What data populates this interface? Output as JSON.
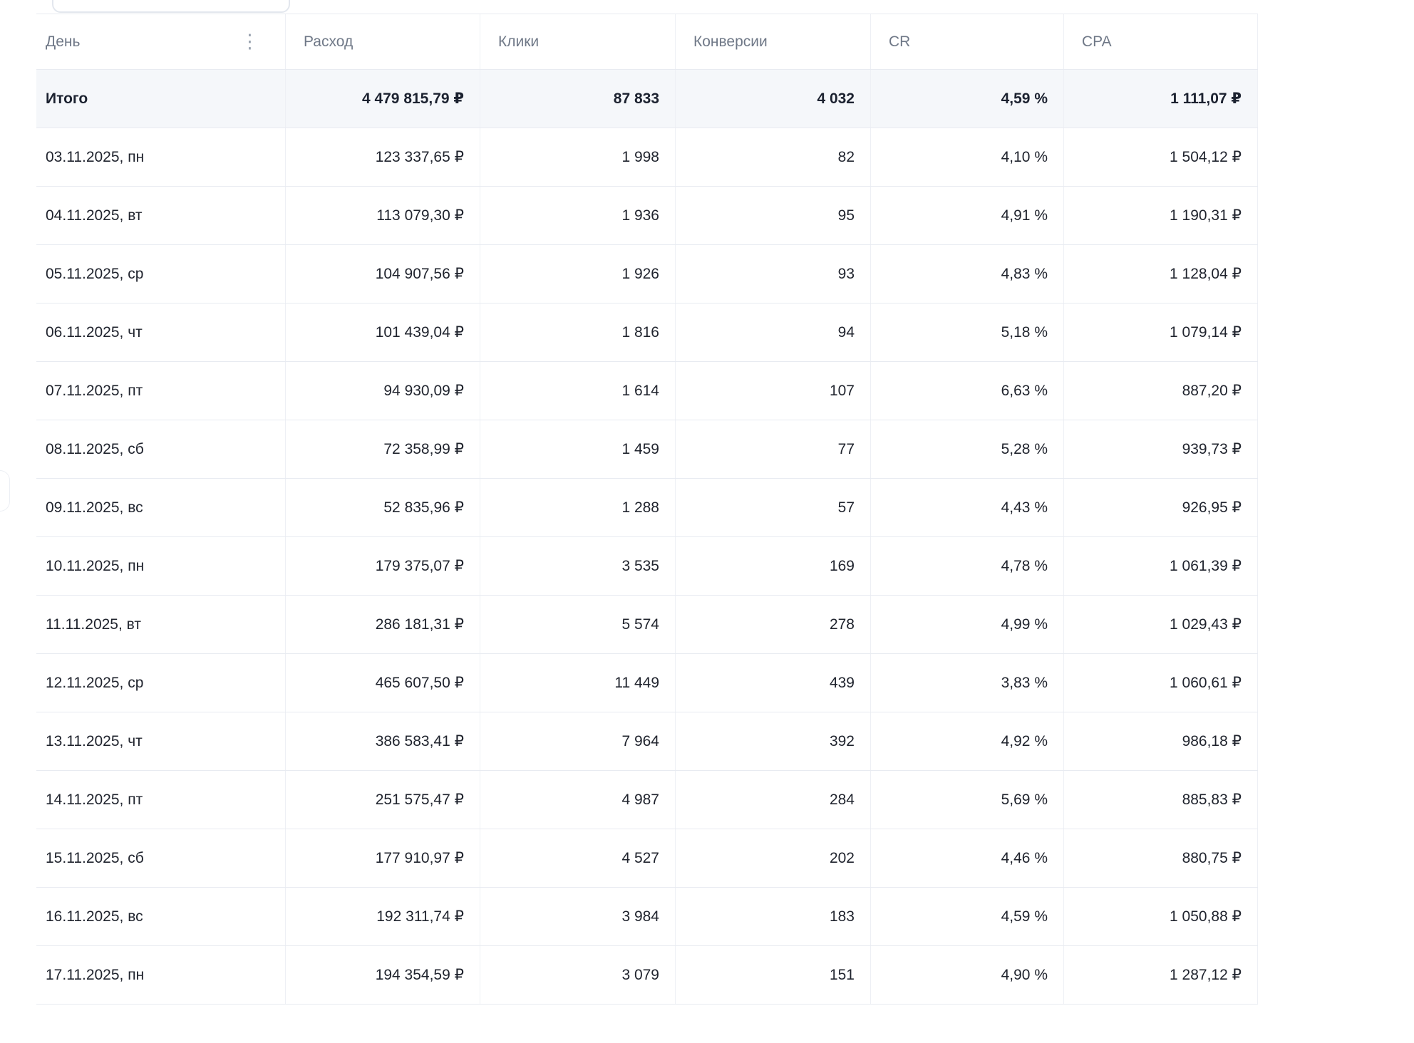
{
  "table": {
    "columns": [
      {
        "key": "day",
        "label": "День"
      },
      {
        "key": "spend",
        "label": "Расход"
      },
      {
        "key": "clicks",
        "label": "Клики"
      },
      {
        "key": "conversions",
        "label": "Конверсии"
      },
      {
        "key": "cr",
        "label": "CR"
      },
      {
        "key": "cpa",
        "label": "CPA"
      }
    ],
    "totals": {
      "day": "Итого",
      "spend": "4 479 815,79 ₽",
      "clicks": "87 833",
      "conversions": "4 032",
      "cr": "4,59 %",
      "cpa": "1 111,07 ₽"
    },
    "rows": [
      {
        "day": "03.11.2025, пн",
        "spend": "123 337,65 ₽",
        "clicks": "1 998",
        "conversions": "82",
        "cr": "4,10 %",
        "cpa": "1 504,12 ₽"
      },
      {
        "day": "04.11.2025, вт",
        "spend": "113 079,30 ₽",
        "clicks": "1 936",
        "conversions": "95",
        "cr": "4,91 %",
        "cpa": "1 190,31 ₽"
      },
      {
        "day": "05.11.2025, ср",
        "spend": "104 907,56 ₽",
        "clicks": "1 926",
        "conversions": "93",
        "cr": "4,83 %",
        "cpa": "1 128,04 ₽"
      },
      {
        "day": "06.11.2025, чт",
        "spend": "101 439,04 ₽",
        "clicks": "1 816",
        "conversions": "94",
        "cr": "5,18 %",
        "cpa": "1 079,14 ₽"
      },
      {
        "day": "07.11.2025, пт",
        "spend": "94 930,09 ₽",
        "clicks": "1 614",
        "conversions": "107",
        "cr": "6,63 %",
        "cpa": "887,20 ₽"
      },
      {
        "day": "08.11.2025, сб",
        "spend": "72 358,99 ₽",
        "clicks": "1 459",
        "conversions": "77",
        "cr": "5,28 %",
        "cpa": "939,73 ₽"
      },
      {
        "day": "09.11.2025, вс",
        "spend": "52 835,96 ₽",
        "clicks": "1 288",
        "conversions": "57",
        "cr": "4,43 %",
        "cpa": "926,95 ₽"
      },
      {
        "day": "10.11.2025, пн",
        "spend": "179 375,07 ₽",
        "clicks": "3 535",
        "conversions": "169",
        "cr": "4,78 %",
        "cpa": "1 061,39 ₽"
      },
      {
        "day": "11.11.2025, вт",
        "spend": "286 181,31 ₽",
        "clicks": "5 574",
        "conversions": "278",
        "cr": "4,99 %",
        "cpa": "1 029,43 ₽"
      },
      {
        "day": "12.11.2025, ср",
        "spend": "465 607,50 ₽",
        "clicks": "11 449",
        "conversions": "439",
        "cr": "3,83 %",
        "cpa": "1 060,61 ₽"
      },
      {
        "day": "13.11.2025, чт",
        "spend": "386 583,41 ₽",
        "clicks": "7 964",
        "conversions": "392",
        "cr": "4,92 %",
        "cpa": "986,18 ₽"
      },
      {
        "day": "14.11.2025, пт",
        "spend": "251 575,47 ₽",
        "clicks": "4 987",
        "conversions": "284",
        "cr": "5,69 %",
        "cpa": "885,83 ₽"
      },
      {
        "day": "15.11.2025, сб",
        "spend": "177 910,97 ₽",
        "clicks": "4 527",
        "conversions": "202",
        "cr": "4,46 %",
        "cpa": "880,75 ₽"
      },
      {
        "day": "16.11.2025, вс",
        "spend": "192 311,74 ₽",
        "clicks": "3 984",
        "conversions": "183",
        "cr": "4,59 %",
        "cpa": "1 050,88 ₽"
      },
      {
        "day": "17.11.2025, пн",
        "spend": "194 354,59 ₽",
        "clicks": "3 079",
        "conversions": "151",
        "cr": "4,90 %",
        "cpa": "1 287,12 ₽"
      }
    ]
  },
  "icons": {
    "kebab": "⋮"
  }
}
